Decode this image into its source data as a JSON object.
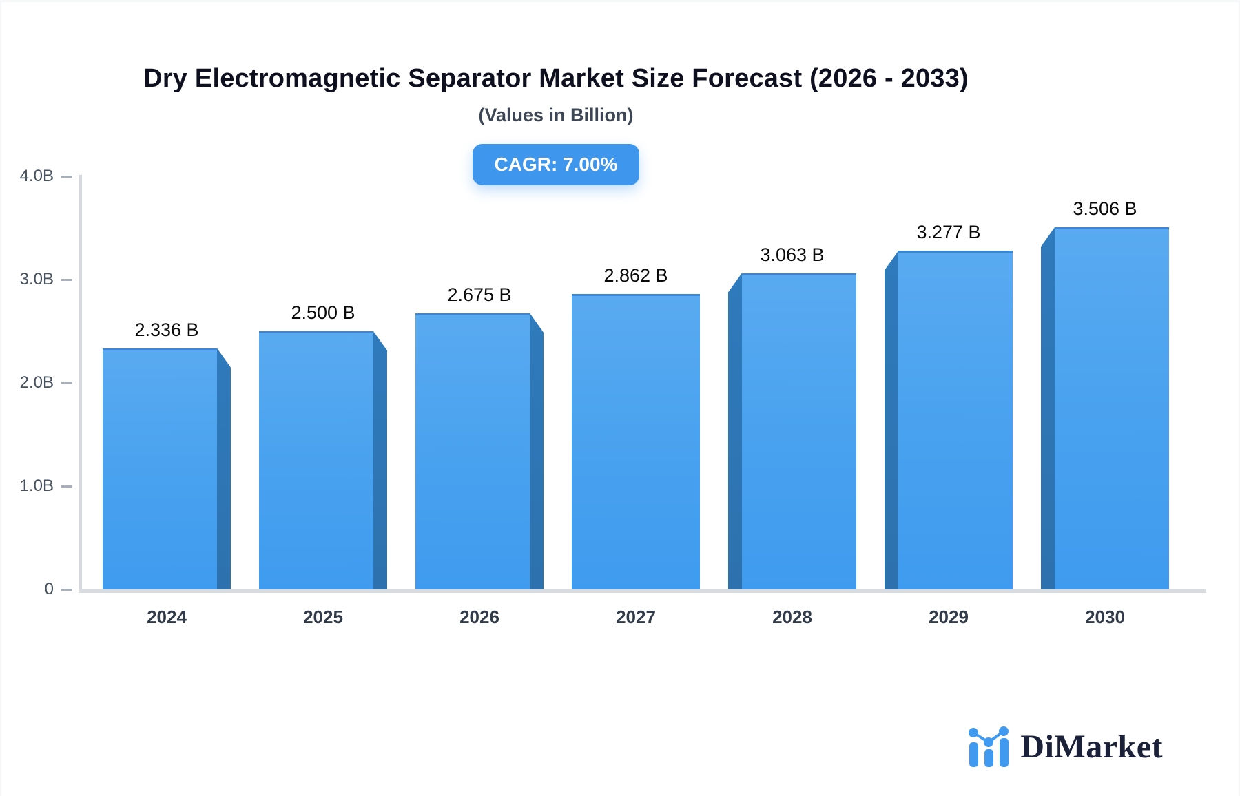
{
  "header": {
    "title": "Dry Electromagnetic Separator Market Size Forecast (2026 - 2033)",
    "subtitle": "(Values in Billion)",
    "cagr_badge": "CAGR: 7.00%"
  },
  "chart_data": {
    "type": "bar",
    "title": "Dry Electromagnetic Separator Market Size Forecast (2026 - 2033)",
    "subtitle": "(Values in Billion)",
    "categories": [
      "2024",
      "2025",
      "2026",
      "2027",
      "2028",
      "2029",
      "2030"
    ],
    "values": [
      2.336,
      2.5,
      2.675,
      2.862,
      3.063,
      3.277,
      3.506
    ],
    "value_labels": [
      "2.336 B",
      "2.500 B",
      "2.675 B",
      "2.862 B",
      "3.063 B",
      "3.277 B",
      "3.506 B"
    ],
    "unit": "Billion",
    "ylim": [
      0,
      4
    ],
    "yticks": [
      {
        "value": 0,
        "label": "0"
      },
      {
        "value": 1,
        "label": "1.0B"
      },
      {
        "value": 2,
        "label": "2.0B"
      },
      {
        "value": 3,
        "label": "3.0B"
      },
      {
        "value": 4,
        "label": "4.0B"
      }
    ],
    "grid": false,
    "legend": false,
    "bar_style": "3d-perspective-toward-center"
  },
  "colors": {
    "bar_face_top": "#59aaf0",
    "bar_face_bottom": "#3f9bef",
    "bar_side": "#2e76b5",
    "bar_top_edge": "#3b86d2",
    "badge_background": "#3f96ed",
    "badge_text": "#ffffff",
    "axis_line": "#d4d8de",
    "tick": "#a7afba",
    "logo_navy": "#1a2138",
    "logo_blue": "#3f9af0"
  },
  "footer": {
    "logo_text": "DiMarket",
    "logo_icon": "bar-chart-icon"
  }
}
